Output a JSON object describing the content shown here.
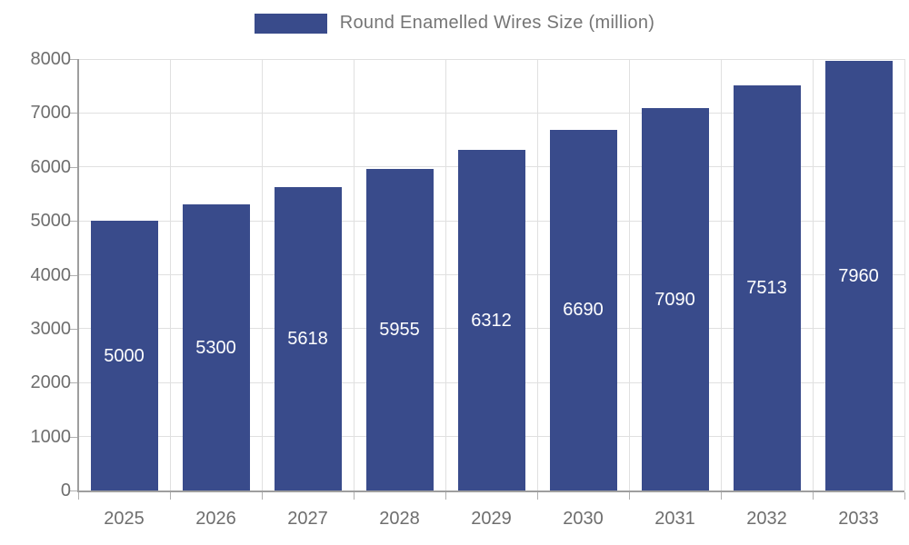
{
  "legend": {
    "label": "Round Enamelled Wires Size (million)"
  },
  "colors": {
    "bar": "#394b8b",
    "axis_line": "#9e9e9e",
    "grid_line": "#e0e0e0",
    "tick_text": "#6e6e6e",
    "bar_label_text": "#ffffff",
    "background": "#ffffff"
  },
  "chart_data": {
    "type": "bar",
    "title": "Round Enamelled Wires Size (million)",
    "categories": [
      "2025",
      "2026",
      "2027",
      "2028",
      "2029",
      "2030",
      "2031",
      "2032",
      "2033"
    ],
    "values": [
      5000,
      5300,
      5618,
      5955,
      6312,
      6690,
      7090,
      7513,
      7960
    ],
    "xlabel": "",
    "ylabel": "",
    "ylim": [
      0,
      8000
    ],
    "ytick_step": 1000,
    "ytick_labels": [
      "0",
      "1000",
      "2000",
      "3000",
      "4000",
      "5000",
      "6000",
      "7000",
      "8000"
    ],
    "grid": true,
    "legend_position": "top-center",
    "bar_label_position": "center-inside"
  }
}
